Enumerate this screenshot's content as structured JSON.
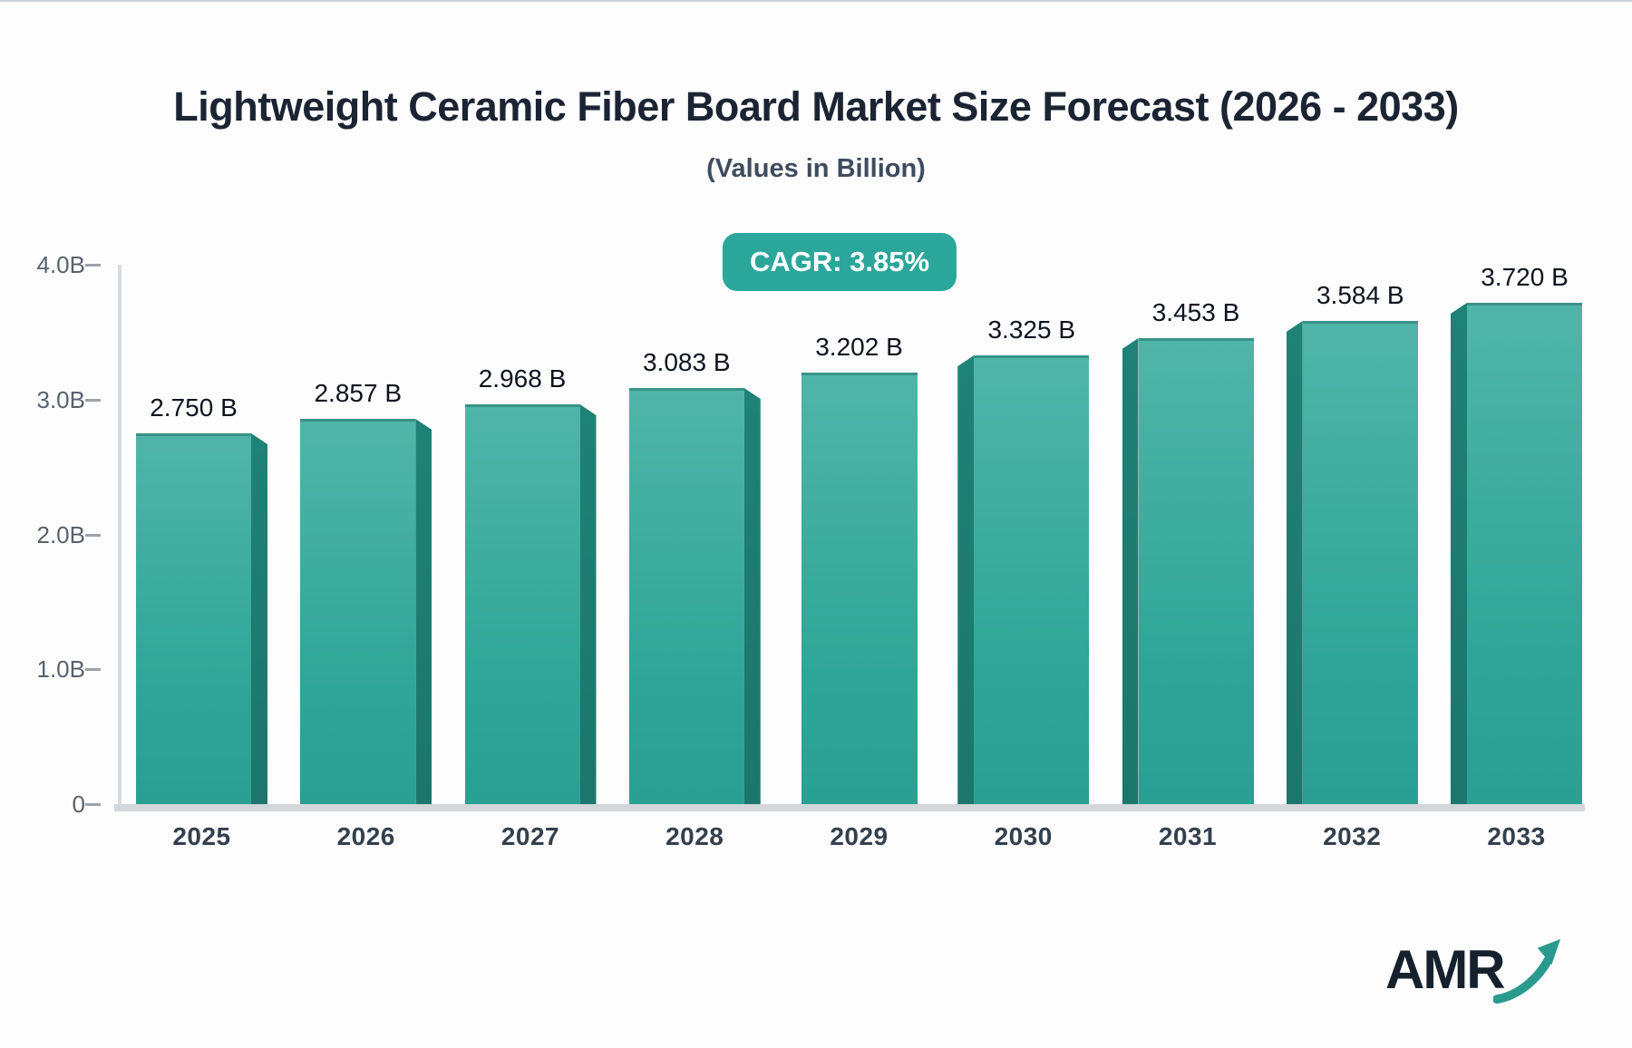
{
  "header": {
    "title": "Lightweight Ceramic Fiber Board Market Size Forecast (2026 - 2033)",
    "subtitle": "(Values in Billion)"
  },
  "badge": {
    "label": "CAGR: 3.85%"
  },
  "logo": {
    "text": "AMR",
    "icon": "growth-arrow-icon"
  },
  "colors": {
    "badge_bg": "#2aa79a",
    "bar_face_top": "#50b5a9",
    "bar_face_bottom": "#2aa093",
    "bar_side": "#1f8276",
    "baseline": "#d3d6da",
    "title_text": "#1b2433",
    "axis_text": "#57626e",
    "value_label_text": "#0c141d",
    "logo_navy": "#16212e",
    "logo_arrow_teal": "#2a9a8f"
  },
  "chart_data": {
    "type": "bar",
    "title": "Lightweight Ceramic Fiber Board Market Size Forecast (2026 - 2033)",
    "subtitle": "(Values in Billion)",
    "categories": [
      "2025",
      "2026",
      "2027",
      "2028",
      "2029",
      "2030",
      "2031",
      "2032",
      "2033"
    ],
    "values": [
      2.75,
      2.857,
      2.968,
      3.083,
      3.202,
      3.325,
      3.453,
      3.584,
      3.72
    ],
    "value_labels": [
      "2.750 B",
      "2.857 B",
      "2.968 B",
      "3.083 B",
      "3.202 B",
      "3.325 B",
      "3.453 B",
      "3.584 B",
      "3.720 B"
    ],
    "xlabel": "",
    "ylabel": "",
    "ylim": [
      0,
      4
    ],
    "yticks": [
      {
        "value": 0,
        "label": "0"
      },
      {
        "value": 1,
        "label": "1.0B"
      },
      {
        "value": 2,
        "label": "2.0B"
      },
      {
        "value": 3,
        "label": "3.0B"
      },
      {
        "value": 4,
        "label": "4.0B"
      }
    ],
    "grid": false,
    "legend": false,
    "annotation": "CAGR: 3.85%"
  }
}
